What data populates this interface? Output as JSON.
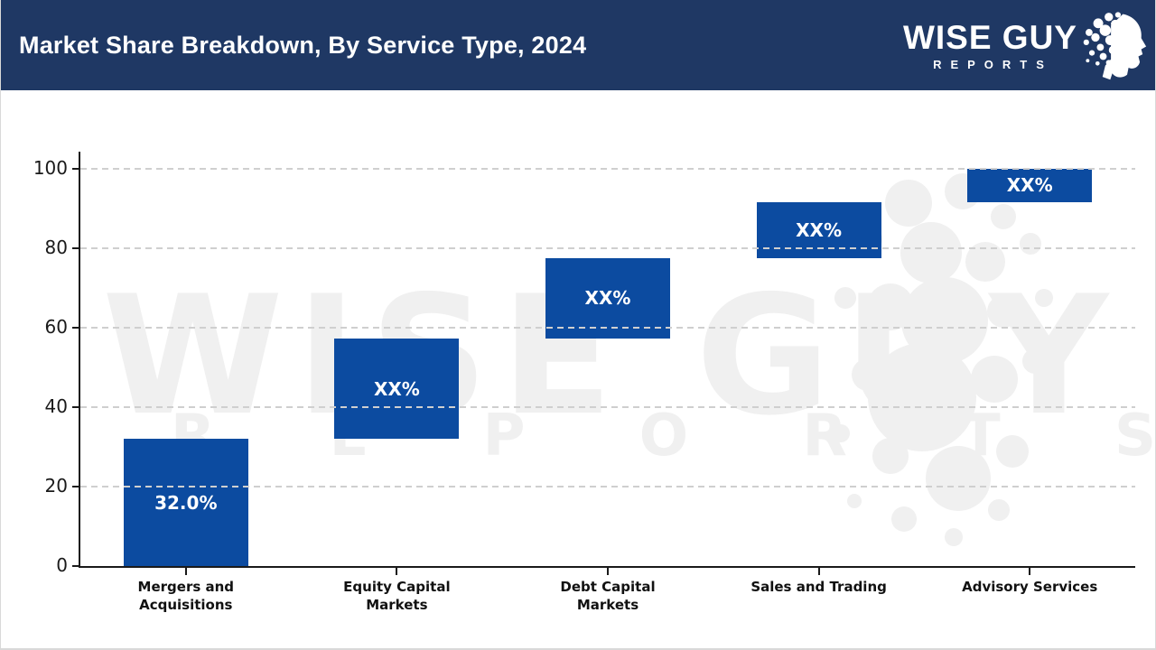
{
  "header": {
    "title": "Market Share Breakdown, By Service Type, 2024",
    "bg_color": "#1f3864",
    "logo": {
      "name": "WISE GUY",
      "sub": "REPORTS",
      "head_icon": "dotted-head-profile"
    }
  },
  "watermark": {
    "big_text": "WISE GUY",
    "small_text": "R E P O R T S"
  },
  "chart_data": {
    "type": "bar",
    "variant": "waterfall",
    "title": "Market Share Breakdown, By Service Type, 2024",
    "categories": [
      "Mergers and\nAcquisitions",
      "Equity Capital\nMarkets",
      "Debt Capital\nMarkets",
      "Sales and Trading",
      "Advisory Services"
    ],
    "segments": [
      {
        "category": "Mergers and Acquisitions",
        "start": 0,
        "end": 32.0,
        "label": "32.0%"
      },
      {
        "category": "Equity Capital Markets",
        "start": 32.0,
        "end": 57.3,
        "label": "XX%"
      },
      {
        "category": "Debt Capital Markets",
        "start": 57.3,
        "end": 77.5,
        "label": "XX%"
      },
      {
        "category": "Sales and Trading",
        "start": 77.5,
        "end": 91.6,
        "label": "XX%"
      },
      {
        "category": "Advisory Services",
        "start": 91.6,
        "end": 100.0,
        "label": "XX%"
      }
    ],
    "increments": [
      32.0,
      25.3,
      20.2,
      14.1,
      8.4
    ],
    "xlabel": "",
    "ylabel": "",
    "ylim": [
      0,
      100
    ],
    "yticks": [
      0,
      20,
      40,
      60,
      80,
      100
    ],
    "grid": "horizontal-dashed",
    "legend": false,
    "bar_color": "#0c4ba0",
    "bar_label_color": "#ffffff",
    "grid_color": "#cfcfcf",
    "axis_color": "#1a1a1a"
  }
}
